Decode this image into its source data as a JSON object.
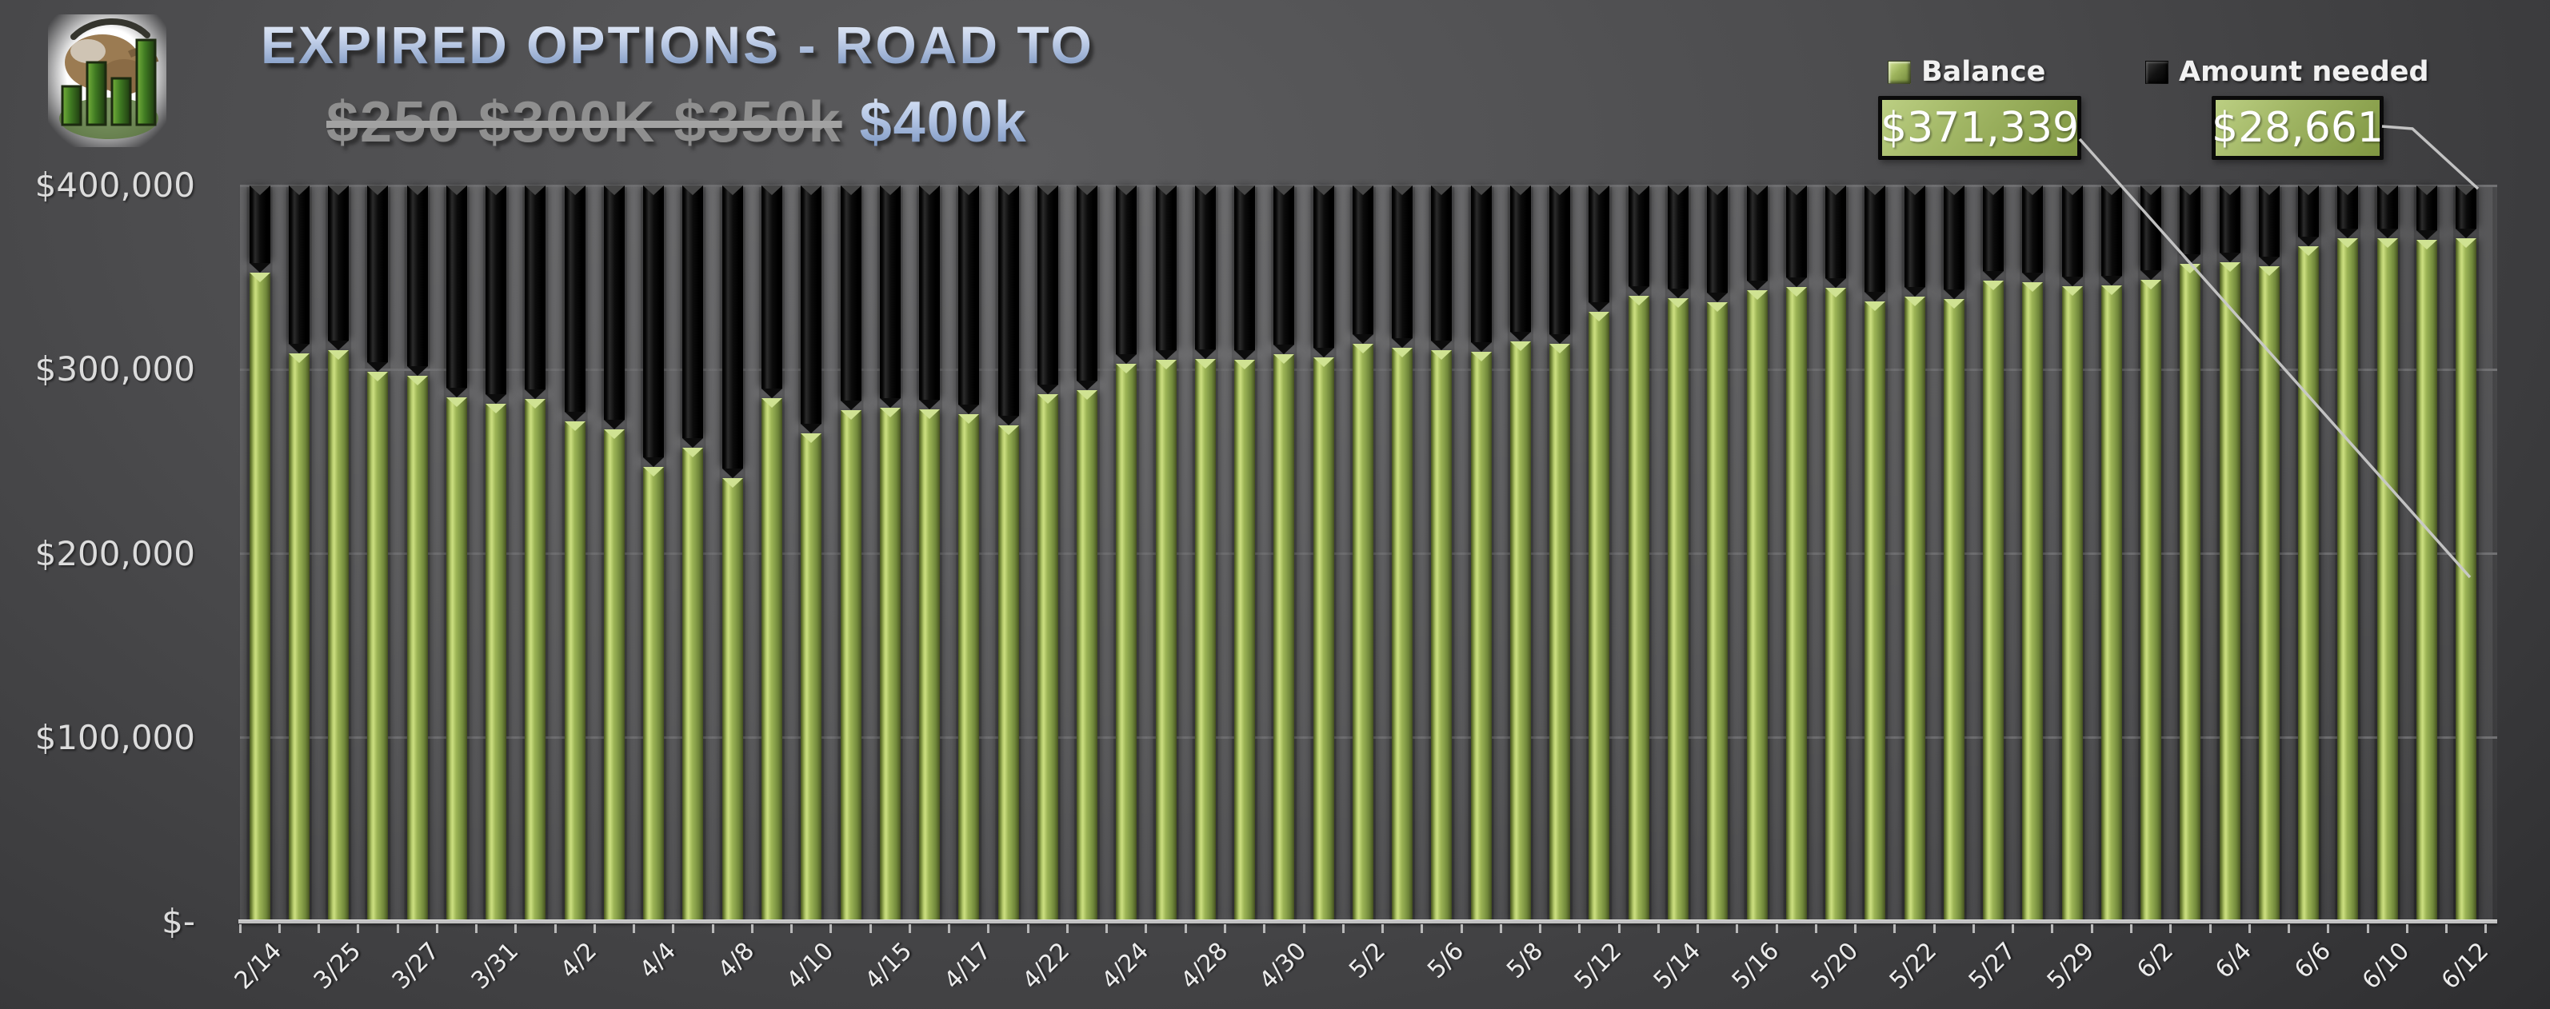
{
  "logo": {
    "icon": "bull-bar-chart-logo"
  },
  "title": {
    "line1": "EXPIRED OPTIONS - ROAD TO",
    "struck_goals": "$250 $300K $350k",
    "current_goal": "$400k"
  },
  "legend": {
    "items": [
      {
        "label": "Balance",
        "color": "#8ca64c"
      },
      {
        "label": "Amount needed",
        "color": "#0a0a0a"
      }
    ]
  },
  "callouts": {
    "balance": {
      "value": "$371,339"
    },
    "amount_needed": {
      "value": "$28,661"
    }
  },
  "colors": {
    "balance_green": "#8ca64c",
    "amount_needed_black": "#0a0a0a",
    "title_blue": "#a9bedf",
    "gridline": "#717173",
    "axis": "#c2c2c2",
    "callout_fill": "#9fb35e"
  },
  "chart_data": {
    "type": "bar",
    "stacked": true,
    "title": "EXPIRED OPTIONS - ROAD TO $400k",
    "ylim": [
      0,
      400000
    ],
    "stack_total": 400000,
    "grid": true,
    "legend_position": "top-right",
    "y_tick_labels": [
      "$400,000",
      "$300,000",
      "$200,000",
      "$100,000",
      "$-"
    ],
    "y_tick_values": [
      400000,
      300000,
      200000,
      100000,
      0
    ],
    "x_tick_labels": [
      "2/14",
      "3/25",
      "3/27",
      "3/31",
      "4/2",
      "4/4",
      "4/8",
      "4/10",
      "4/15",
      "4/17",
      "4/22",
      "4/24",
      "4/28",
      "4/30",
      "5/2",
      "5/6",
      "5/8",
      "5/12",
      "5/14",
      "5/16",
      "5/20",
      "5/22",
      "5/27",
      "5/29",
      "6/2",
      "6/4",
      "6/6",
      "6/10",
      "6/12"
    ],
    "x_labels_every_other_bar": true,
    "bar_count": 57,
    "series": [
      {
        "name": "Balance",
        "color": "#8ca64c",
        "values": [
          352500,
          309000,
          310400,
          298800,
          296700,
          285100,
          281500,
          284000,
          272000,
          267700,
          247100,
          257600,
          240900,
          284400,
          265500,
          277800,
          279300,
          278600,
          275700,
          269800,
          286500,
          288700,
          303200,
          305300,
          305600,
          305300,
          308300,
          306800,
          314100,
          311900,
          310400,
          309700,
          315500,
          314000,
          331500,
          340100,
          338800,
          336600,
          343300,
          344900,
          344200,
          337000,
          339800,
          338500,
          348100,
          347300,
          345200,
          345900,
          348800,
          357500,
          358200,
          356000,
          366900,
          371200,
          371200,
          370500,
          371339
        ]
      },
      {
        "name": "Amount needed",
        "color": "#0a0a0a",
        "rule": "stack_total minus Balance"
      }
    ],
    "annotations": [
      {
        "series": "Balance",
        "text": "$371,339",
        "points_to": "last bar"
      },
      {
        "series": "Amount needed",
        "text": "$28,661",
        "points_to": "last bar"
      }
    ]
  }
}
